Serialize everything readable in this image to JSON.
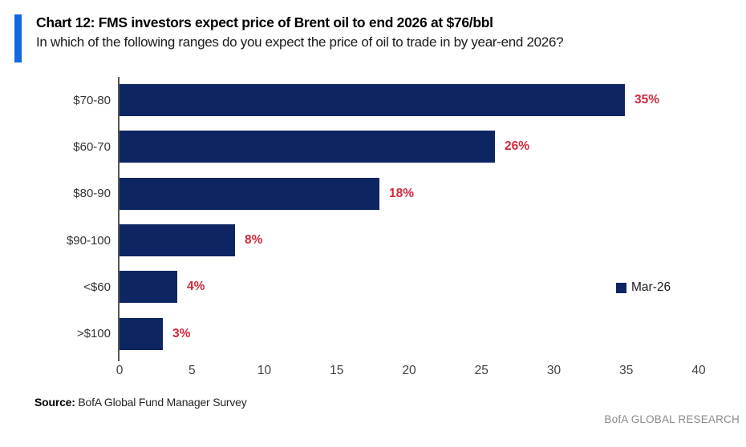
{
  "header": {
    "title": "Chart 12: FMS investors expect price of Brent oil to end 2026 at $76/bbl",
    "subtitle": "In which of the following ranges do you expect the price of oil to trade in by year-end 2026?"
  },
  "chart_data": {
    "type": "bar",
    "orientation": "horizontal",
    "title": "Chart 12: FMS investors expect price of Brent oil to end 2026 at $76/bbl",
    "categories": [
      "$70-80",
      "$60-70",
      "$80-90",
      "$90-100",
      "<$60",
      ">$100"
    ],
    "series": [
      {
        "name": "Mar-26",
        "values": [
          35,
          26,
          18,
          8,
          4,
          3
        ]
      }
    ],
    "value_labels": [
      "35%",
      "26%",
      "18%",
      "8%",
      "4%",
      "3%"
    ],
    "xlim": [
      0,
      40
    ],
    "xticks": [
      0,
      5,
      10,
      15,
      20,
      25,
      30,
      35,
      40
    ],
    "grid": false,
    "legend_position": "right-middle",
    "bar_color": "#0d2563",
    "value_label_color": "#d0293e"
  },
  "legend": {
    "label": "Mar-26"
  },
  "colors": {
    "accent_bar": "#1268e0",
    "bar": "#0d2563",
    "value_label": "#d0293e"
  },
  "footer": {
    "source_label": "Source:",
    "source_text": " BofA Global Fund Manager Survey",
    "brand": "BofA GLOBAL RESEARCH"
  }
}
